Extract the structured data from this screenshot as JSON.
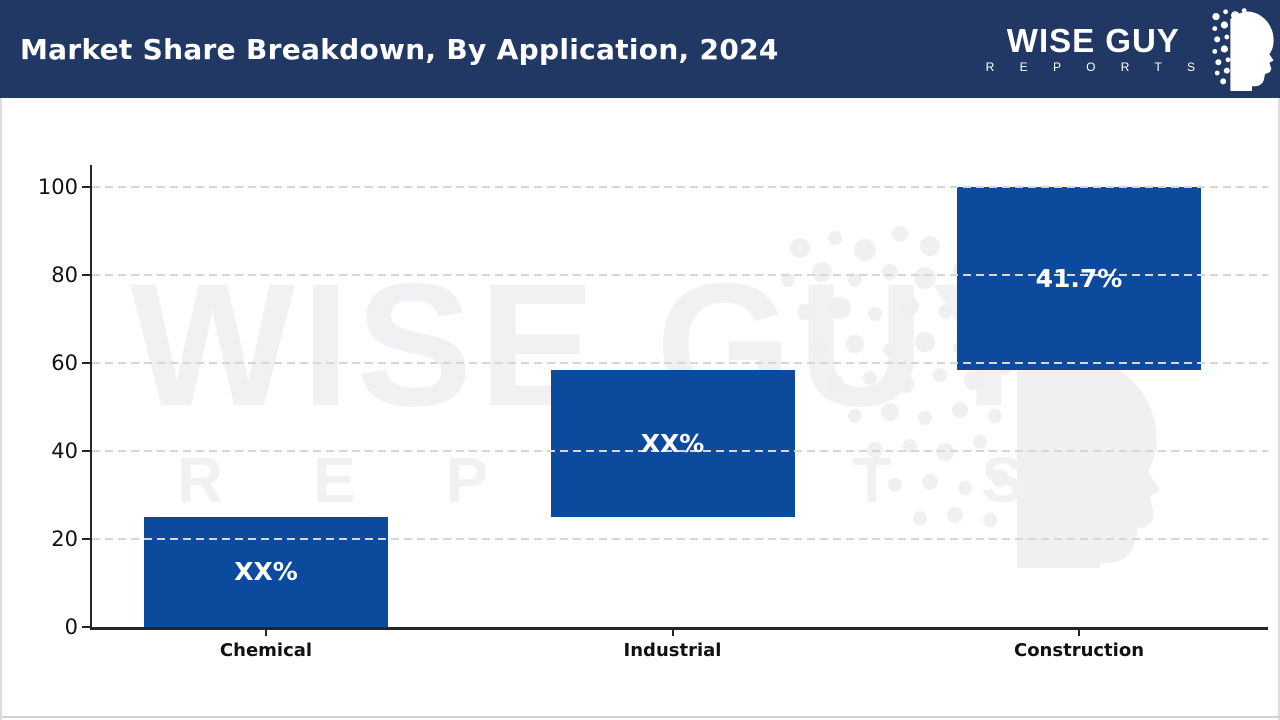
{
  "header": {
    "title": "Market Share Breakdown, By Application, 2024",
    "logo": {
      "line1": "WISE GUY",
      "line2": "R E P O R T S"
    }
  },
  "watermark": {
    "line1": "WISE GUY",
    "line2": "R E P O R T S"
  },
  "chart_data": {
    "type": "bar",
    "subtype": "floating-waterfall",
    "title": "Market Share Breakdown, By Application, 2024",
    "categories": [
      "Chemical",
      "Industrial",
      "Construction"
    ],
    "series": [
      {
        "name": "Market share (%)",
        "segments": [
          {
            "category": "Chemical",
            "start": 0,
            "end": 25,
            "label": "XX%"
          },
          {
            "category": "Industrial",
            "start": 25,
            "end": 58.3,
            "label": "XX%"
          },
          {
            "category": "Construction",
            "start": 58.3,
            "end": 100,
            "label": "41.7%"
          }
        ]
      }
    ],
    "xlabel": "",
    "ylabel": "",
    "y_ticks": [
      0,
      20,
      40,
      60,
      80,
      100
    ],
    "ylim": [
      0,
      105
    ],
    "grid": "horizontal-dashed",
    "legend": "none",
    "colors": {
      "bar": "#0c4a9e",
      "bar_label": "#ffffff",
      "grid": "#d6d6d6",
      "axis": "#262626",
      "tick_label": "#111111",
      "header_bg": "#223864",
      "header_text": "#ffffff",
      "watermark": "#f1f1f3"
    }
  }
}
